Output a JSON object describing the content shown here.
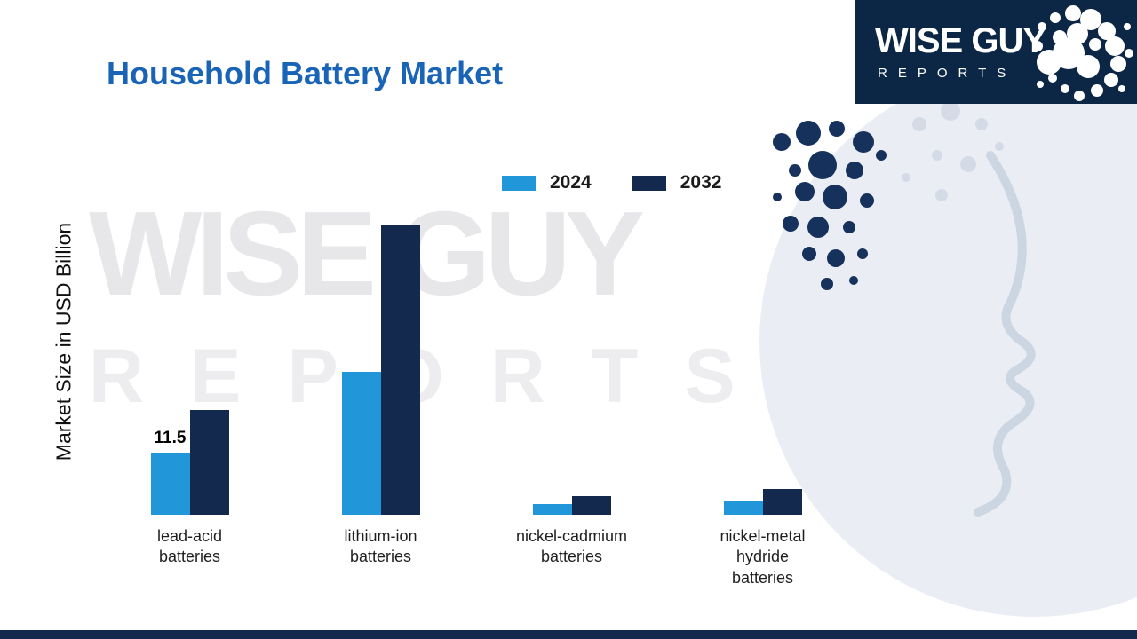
{
  "header": {
    "title": "Household Battery Market"
  },
  "logo": {
    "name": "WISE GUY",
    "sub": "REPORTS"
  },
  "watermark": {
    "line1": "WISE GUY",
    "line2": "REPORTS"
  },
  "legend": {
    "items": [
      "2024",
      "2032"
    ]
  },
  "chart_data": {
    "type": "bar",
    "title": "Household Battery Market",
    "xlabel": "",
    "ylabel": "Market Size in USD Billion",
    "ylim": [
      0,
      60
    ],
    "grid": false,
    "legend_position": "top",
    "categories": [
      "lead-acid\nbatteries",
      "lithium-ion\nbatteries",
      "nickel-cadmium\nbatteries",
      "nickel-metal\nhydride\nbatteries"
    ],
    "series": [
      {
        "name": "2024",
        "color": "#2196d9",
        "values": [
          11.5,
          26.5,
          2.0,
          2.4
        ]
      },
      {
        "name": "2032",
        "color": "#13294e",
        "values": [
          19.4,
          53.5,
          3.5,
          4.7
        ]
      }
    ],
    "annotations": [
      {
        "category_index": 0,
        "series_index": 0,
        "text": "11.5"
      }
    ]
  },
  "colors": {
    "title": "#1a64b8",
    "bar2024": "#2196d9",
    "bar2032": "#13294e",
    "logoBg": "#0c2745",
    "circle": "#eaeef4",
    "watermark": "#e7e7ea",
    "footer": "#13294e"
  }
}
